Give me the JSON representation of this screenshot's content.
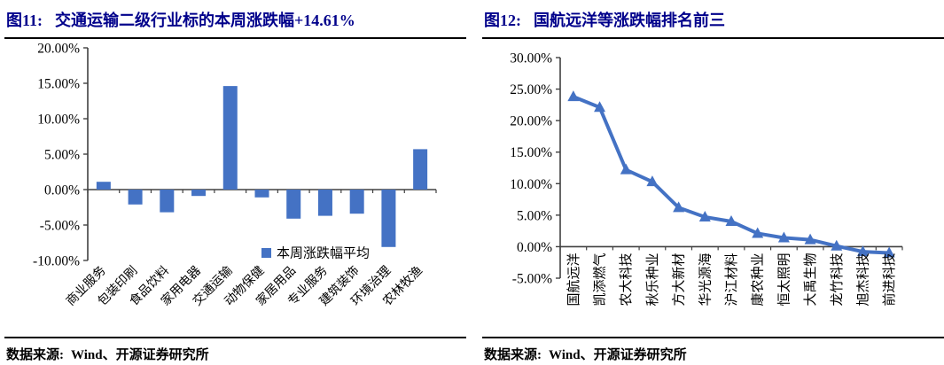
{
  "colors": {
    "accent": "#4472C4",
    "title_navy": "#00008B",
    "axis": "#404040"
  },
  "panels": [
    {
      "fig_label": "图11:",
      "title": "交通运输二级行业标的本周涨跌幅+14.61%",
      "source_label": "数据来源:",
      "source_text": "Wind、开源证券研究所"
    },
    {
      "fig_label": "图12:",
      "title": "国航远洋等涨跌幅排名前三",
      "source_label": "数据来源:",
      "source_text": "Wind、开源证券研究所"
    }
  ],
  "chart_data": [
    {
      "type": "bar",
      "title": "交通运输二级行业标的本周涨跌幅+14.61%",
      "categories": [
        "商业服务",
        "包装印刷",
        "食品饮料",
        "家用电器",
        "交通运输",
        "动物保健",
        "家居用品",
        "专业服务",
        "建筑装饰",
        "环境治理",
        "农林牧渔"
      ],
      "values": [
        1.1,
        -2.1,
        -3.2,
        -0.9,
        14.61,
        -1.1,
        -4.1,
        -3.7,
        -3.4,
        -8.1,
        5.7
      ],
      "legend": [
        "本周涨跌幅平均"
      ],
      "legend_position": "inside-bottom-right",
      "xlabel": "",
      "ylabel": "",
      "ylim": [
        -10,
        20
      ],
      "ytick_step": 5,
      "ytick_format": "0.00%",
      "grid": false,
      "bar_color": "#4472C4"
    },
    {
      "type": "line",
      "title": "国航远洋等涨跌幅排名前三",
      "categories": [
        "国航远洋",
        "凯添燃气",
        "农大科技",
        "秋乐种业",
        "方大新材",
        "华光源海",
        "沪江材料",
        "康农种业",
        "恒太照明",
        "大禹生物",
        "龙竹科技",
        "旭杰科技",
        "前进科技"
      ],
      "values": [
        23.8,
        22.1,
        12.2,
        10.3,
        6.2,
        4.7,
        4.0,
        2.1,
        1.4,
        1.1,
        0.1,
        -0.8,
        -1.0
      ],
      "marker": "triangle-up",
      "xlabel": "",
      "ylabel": "",
      "ylim": [
        -5,
        30
      ],
      "ytick_step": 5,
      "ytick_format": "0.00%",
      "grid": false,
      "line_color": "#4472C4"
    }
  ]
}
